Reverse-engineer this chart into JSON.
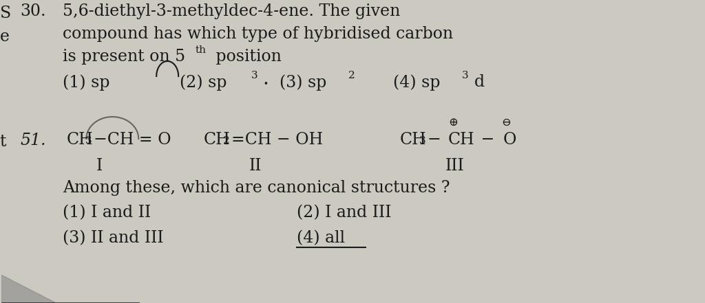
{
  "background_color": "#ccc9c0",
  "text_color": "#1a1a1a",
  "q_number_top": "30.",
  "line1": "5,6-diethyl-3-methyldec-4-ene. The given",
  "line2": "compound has which type of hybridised carbon",
  "line3a": "is present on 5",
  "line3b": "th",
  "line3c": " position",
  "opt1": "(1) sp",
  "opt2a": "(2) sp",
  "opt2b": "3",
  "opt3a": "(3) sp",
  "opt3b": "2",
  "opt4a": "(4) sp",
  "opt4b": "3",
  "opt4c": "d",
  "q51": "51.",
  "among_text": "Among these, which are canonical structures ?",
  "bot1": "(1) I and II",
  "bot2": "(2) I and III",
  "bot3": "(3) II and III",
  "bot4": "(4) all",
  "left1": "S",
  "left2": "e",
  "left3": "t"
}
